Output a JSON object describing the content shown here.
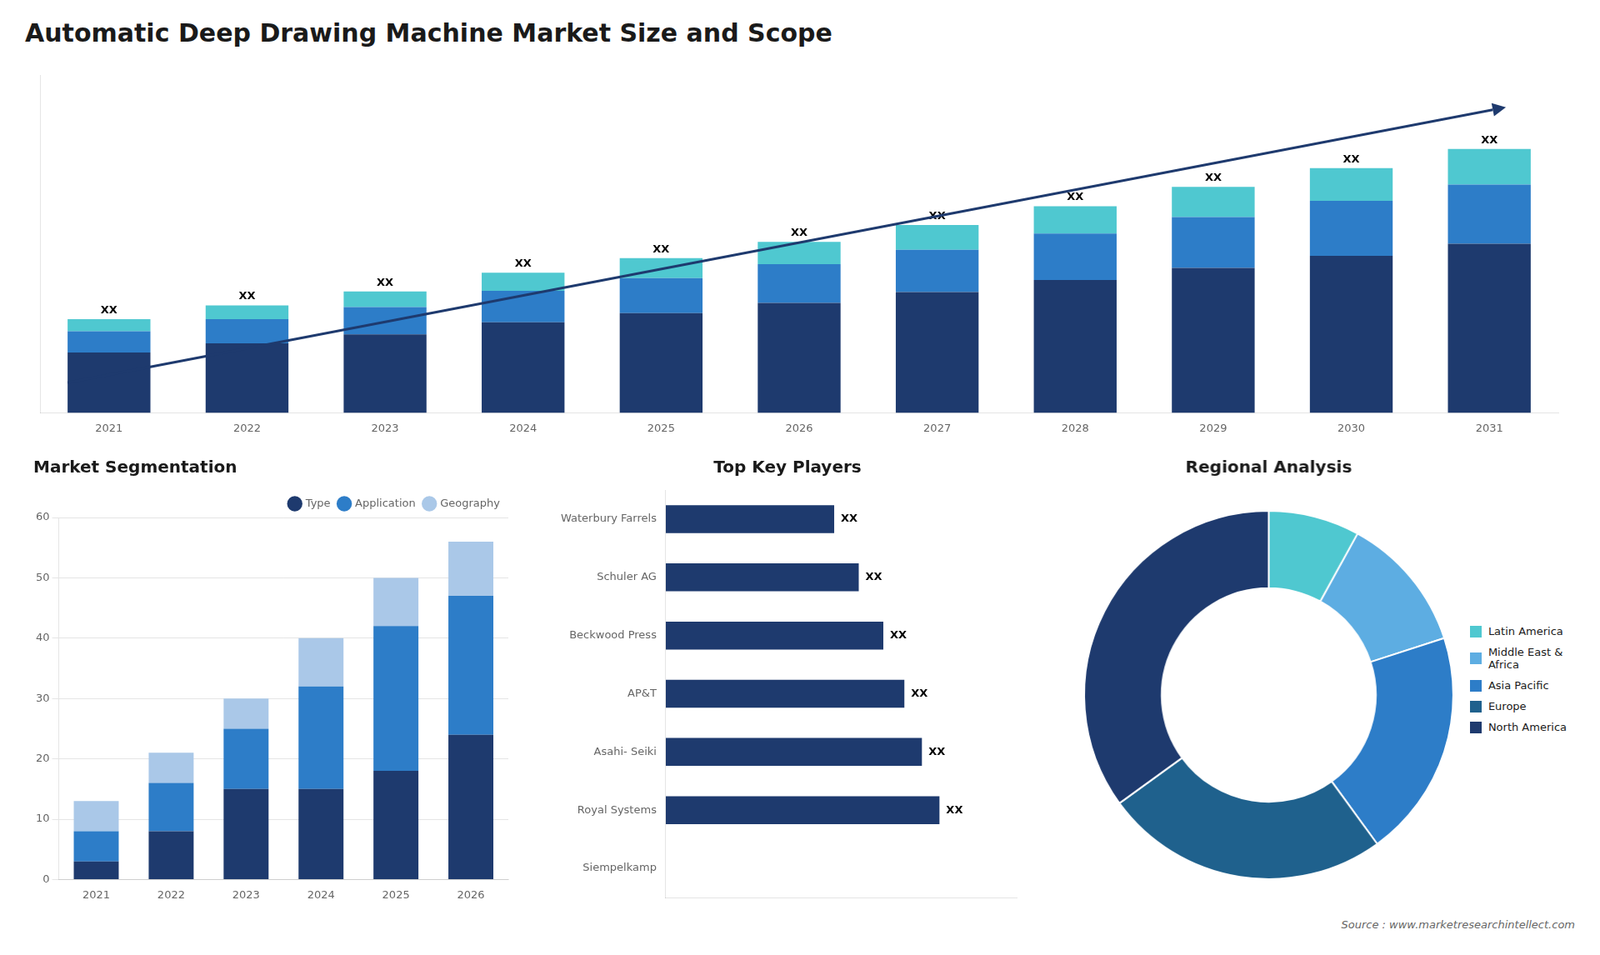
{
  "title": "Automatic Deep Drawing Machine Market Size and Scope",
  "annotations": [
    "Source : www.marketresearchintellect.com"
  ],
  "chart_data": [
    {
      "type": "bar",
      "stacked": true,
      "categories": [
        "2021",
        "2022",
        "2023",
        "2024",
        "2025",
        "2026",
        "2027",
        "2028",
        "2029",
        "2030",
        "2031"
      ],
      "series": [
        {
          "color": "#1e3a6e",
          "values": [
            1.0,
            1.15,
            1.3,
            1.5,
            1.65,
            1.82,
            2.0,
            2.2,
            2.4,
            2.6,
            2.8
          ]
        },
        {
          "color": "#2d7dc8",
          "values": [
            0.35,
            0.4,
            0.45,
            0.52,
            0.58,
            0.64,
            0.7,
            0.77,
            0.84,
            0.91,
            0.98
          ]
        },
        {
          "color": "#4fc8d0",
          "values": [
            0.2,
            0.23,
            0.26,
            0.3,
            0.33,
            0.37,
            0.41,
            0.45,
            0.5,
            0.54,
            0.59
          ]
        }
      ],
      "ylim": [
        0,
        5.5936
      ],
      "tick_labels": "x",
      "grid": false,
      "annotations": [
        "XX",
        "XX",
        "XX",
        "XX",
        "XX",
        "XX",
        "XX",
        "XX",
        "XX",
        "XX",
        "XX"
      ]
    },
    {
      "type": "bar",
      "stacked": true,
      "title": "Market Segmentation",
      "categories": [
        "2021",
        "2022",
        "2023",
        "2024",
        "2025",
        "2026"
      ],
      "series": [
        {
          "name": "Type",
          "color": "#1e3a6e",
          "values": [
            3,
            8,
            15,
            15,
            18,
            24
          ]
        },
        {
          "name": "Application",
          "color": "#2d7dc8",
          "values": [
            5,
            8,
            10,
            17,
            24,
            23
          ]
        },
        {
          "name": "Geography",
          "color": "#aac8e8",
          "values": [
            5,
            5,
            5,
            8,
            8,
            9
          ]
        }
      ],
      "ylim": [
        0,
        60
      ],
      "yticks": [
        0,
        10,
        20,
        30,
        40,
        50,
        60
      ],
      "grid": true,
      "legend": "upper right"
    },
    {
      "type": "bar",
      "orientation": "horizontal",
      "title": "Top Key Players",
      "categories": [
        "Waterbury Farrels",
        "Schuler AG",
        "Beckwood Press",
        "AP&T",
        "Asahi- Seiki",
        "Royal Systems",
        "Siempelkamp"
      ],
      "values": [
        48,
        55,
        62,
        68,
        73,
        78,
        0
      ],
      "value_labels": [
        "XX",
        "XX",
        "XX",
        "XX",
        "XX",
        "XX",
        null
      ],
      "color": "#1e3a6e",
      "xlim": [
        0,
        100
      ],
      "tick_labels": "y",
      "grid": false
    },
    {
      "type": "doughnut",
      "title": "Regional Analysis",
      "categories": [
        "Latin America",
        "Middle East &\nAfrica",
        "Asia Pacific",
        "Europe",
        "North America"
      ],
      "values": [
        8,
        12,
        20,
        25,
        35
      ],
      "colors": [
        "#4fc8d0",
        "#5dade2",
        "#2d7dc8",
        "#1f618d",
        "#1e3a6e"
      ],
      "legend": "right"
    }
  ]
}
